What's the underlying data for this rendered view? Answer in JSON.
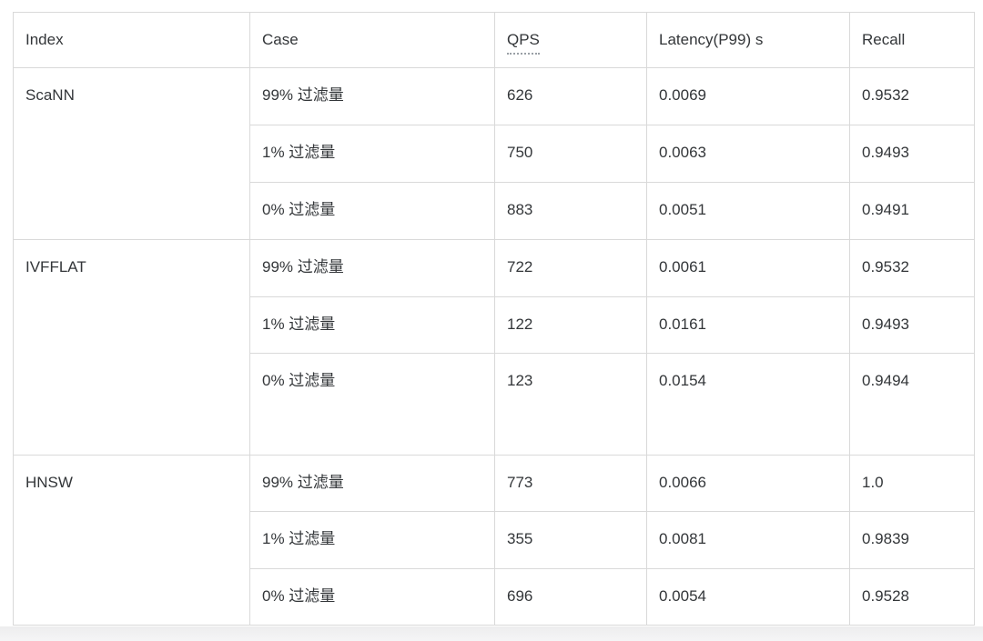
{
  "theme": {
    "background": "#ffffff",
    "border_color": "#d9d9d9",
    "text_color": "#333639",
    "spellcheck_dot_color": "#9aa0a6",
    "below_table_strip_color": "#f0f0f1"
  },
  "table": {
    "columns": [
      {
        "key": "index",
        "label": "Index"
      },
      {
        "key": "case",
        "label": "Case"
      },
      {
        "key": "qps",
        "label": "QPS"
      },
      {
        "key": "latency",
        "label": "Latency(P99) s"
      },
      {
        "key": "recall",
        "label": "Recall"
      }
    ],
    "groups": [
      {
        "index": "ScaNN",
        "rows": [
          {
            "case": "99% 过滤量",
            "qps": "626",
            "latency": "0.0069",
            "recall": "0.9532"
          },
          {
            "case": "1% 过滤量",
            "qps": "750",
            "latency": "0.0063",
            "recall": "0.9493"
          },
          {
            "case": "0% 过滤量",
            "qps": "883",
            "latency": "0.0051",
            "recall": "0.9491"
          }
        ]
      },
      {
        "index": "IVFFLAT",
        "rows": [
          {
            "case": "99% 过滤量",
            "qps": "722",
            "latency": "0.0061",
            "recall": "0.9532"
          },
          {
            "case": "1% 过滤量",
            "qps": "122",
            "latency": "0.0161",
            "recall": "0.9493"
          },
          {
            "case": "0% 过滤量",
            "qps": "123",
            "latency": "0.0154",
            "recall": "0.9494"
          }
        ]
      },
      {
        "index": "HNSW",
        "rows": [
          {
            "case": "99% 过滤量",
            "qps": "773",
            "latency": "0.0066",
            "recall": "1.0"
          },
          {
            "case": "1% 过滤量",
            "qps": "355",
            "latency": "0.0081",
            "recall": "0.9839"
          },
          {
            "case": "0% 过滤量",
            "qps": "696",
            "latency": "0.0054",
            "recall": "0.9528"
          }
        ]
      }
    ]
  },
  "chart_data": {
    "type": "table",
    "columns": [
      "Index",
      "Case",
      "QPS",
      "Latency(P99) s",
      "Recall"
    ],
    "rows": [
      [
        "ScaNN",
        "99% 过滤量",
        626,
        0.0069,
        0.9532
      ],
      [
        "ScaNN",
        "1% 过滤量",
        750,
        0.0063,
        0.9493
      ],
      [
        "ScaNN",
        "0% 过滤量",
        883,
        0.0051,
        0.9491
      ],
      [
        "IVFFLAT",
        "99% 过滤量",
        722,
        0.0061,
        0.9532
      ],
      [
        "IVFFLAT",
        "1% 过滤量",
        122,
        0.0161,
        0.9493
      ],
      [
        "IVFFLAT",
        "0% 过滤量",
        123,
        0.0154,
        0.9494
      ],
      [
        "HNSW",
        "99% 过滤量",
        773,
        0.0066,
        1.0
      ],
      [
        "HNSW",
        "1% 过滤量",
        355,
        0.0081,
        0.9839
      ],
      [
        "HNSW",
        "0% 过滤量",
        696,
        0.0054,
        0.9528
      ]
    ]
  }
}
